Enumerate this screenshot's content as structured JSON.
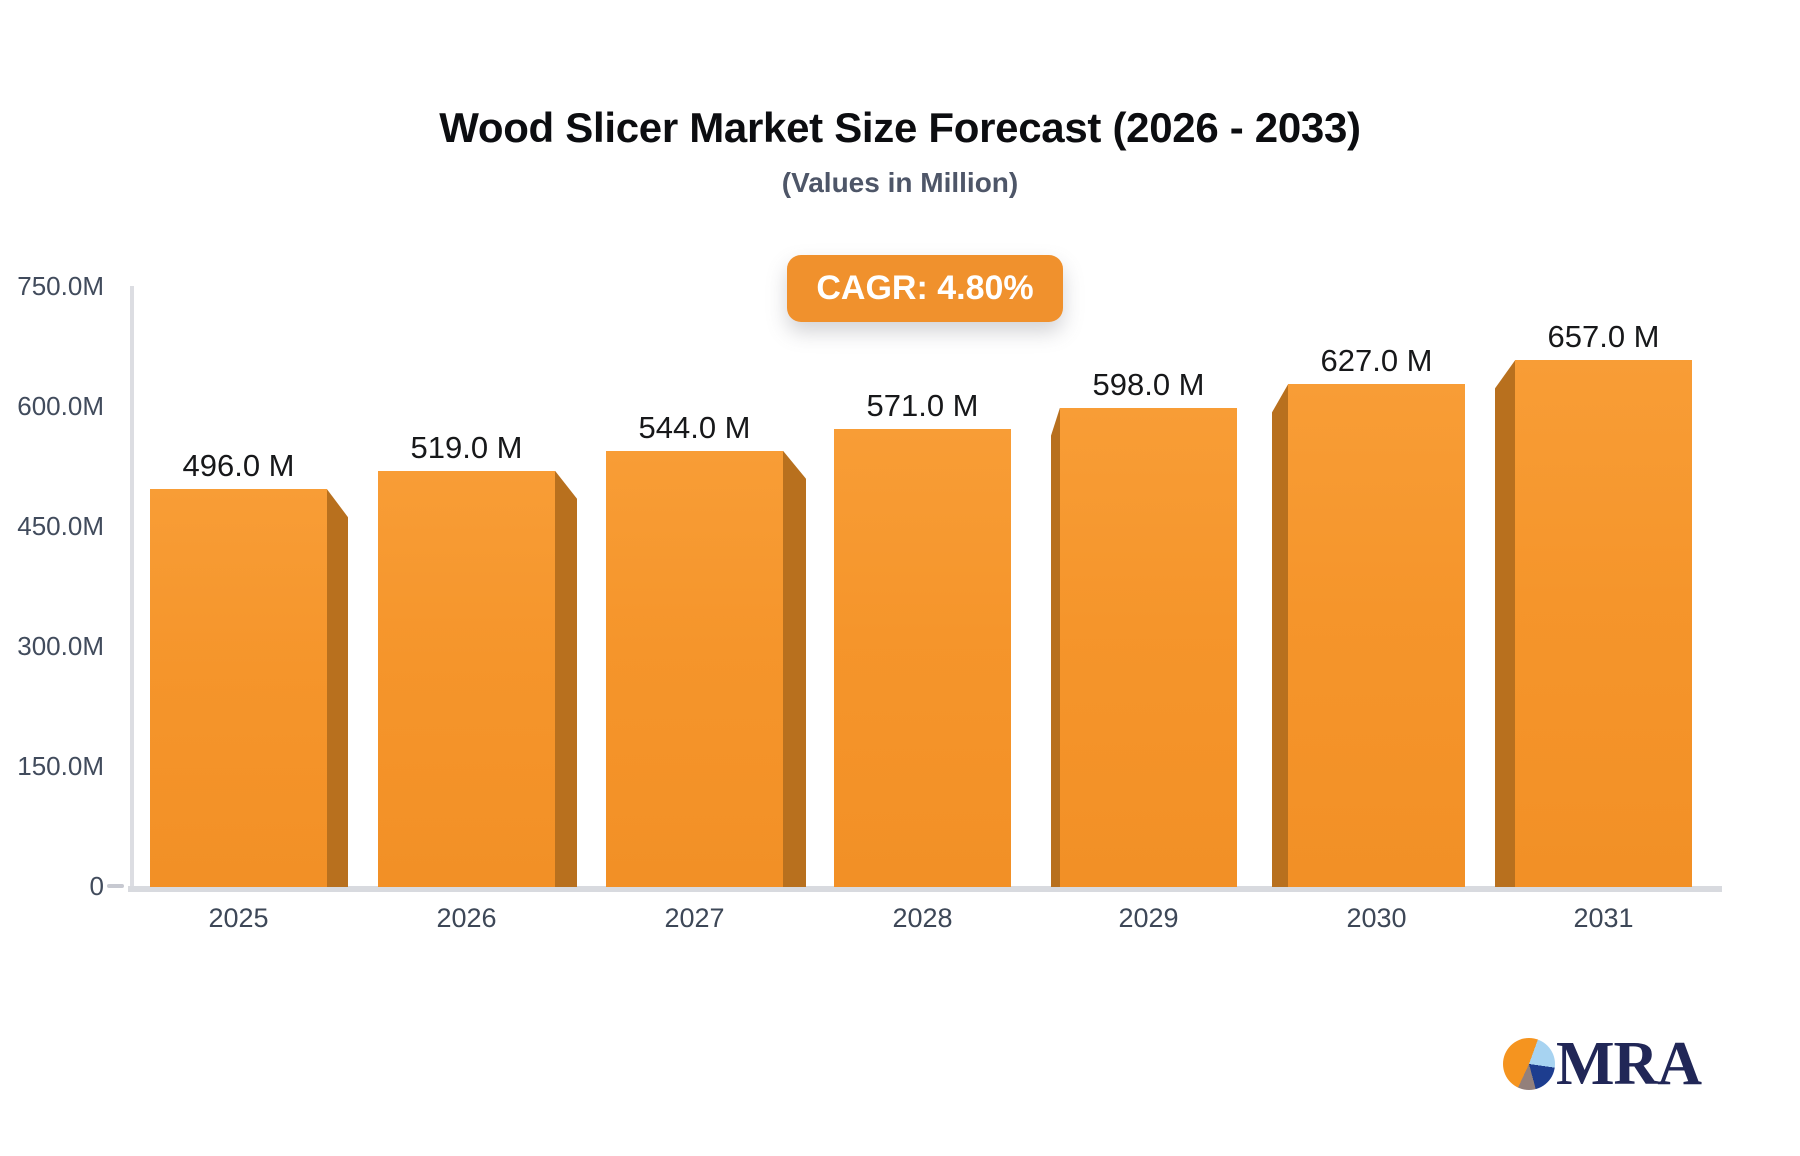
{
  "header": {
    "title": "Wood Slicer Market Size Forecast (2026 - 2033)",
    "subtitle": "(Values in Million)"
  },
  "badge": {
    "label": "CAGR: 4.80%",
    "bg_color": "#f0912d",
    "text_color": "#ffffff"
  },
  "chart_data": {
    "type": "bar",
    "title": "Wood Slicer Market Size Forecast (2026 - 2033)",
    "subtitle": "(Values in Million)",
    "unit": "Million",
    "cagr": "4.80%",
    "categories": [
      "2025",
      "2026",
      "2027",
      "2028",
      "2029",
      "2030",
      "2031"
    ],
    "values": [
      496.0,
      519.0,
      544.0,
      571.0,
      598.0,
      627.0,
      657.0
    ],
    "value_labels": [
      "496.0 M",
      "519.0 M",
      "544.0 M",
      "571.0 M",
      "598.0 M",
      "627.0 M",
      "657.0 M"
    ],
    "xlabel": "",
    "ylabel": "",
    "ylim": [
      0,
      750
    ],
    "grid": false,
    "legend": false,
    "y_ticks": {
      "values": [
        0,
        150,
        300,
        450,
        600,
        750
      ],
      "labels": [
        "0",
        "150.0M",
        "300.0M",
        "450.0M",
        "600.0M",
        "750.0M"
      ]
    },
    "bar_color": "#f5952b",
    "bar_side_color": "#b8701e",
    "axis_color": "#dcdde2",
    "label_color": "#3d4757"
  },
  "logo": {
    "text": "MRA",
    "text_color": "#212757",
    "pie_colors": {
      "orange": "#f5941f",
      "light_blue": "#a7d3f1",
      "dark_blue": "#1d3d8f",
      "gray": "#93807b"
    }
  }
}
